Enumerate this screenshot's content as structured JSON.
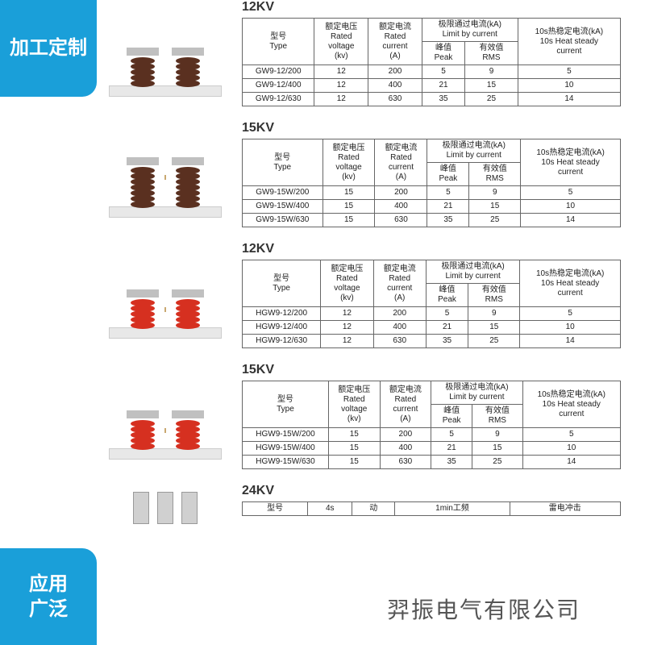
{
  "badges": {
    "top": "加工定制",
    "bottom": "应用\n广泛"
  },
  "footer_company": "羿振电气有限公司",
  "header_labels": {
    "type": "型号\nType",
    "voltage": "额定电压\nRated\nvoltage\n(kv)",
    "current": "额定电流\nRated\ncurrent\n(A)",
    "limit": "极限通过电流(kA)\nLimit by current",
    "peak": "峰值\nPeak",
    "rms": "有效值\nRMS",
    "steady": "10s热稳定电流(kA)\n10s Heat steady\ncurrent"
  },
  "sections": [
    {
      "title": "12KV",
      "insulator_color": "brown",
      "disc_count": 5,
      "cross_bar": false,
      "rows": [
        {
          "type": "GW9-12/200",
          "v": "12",
          "a": "200",
          "peak": "5",
          "rms": "9",
          "steady": "5"
        },
        {
          "type": "GW9-12/400",
          "v": "12",
          "a": "400",
          "peak": "21",
          "rms": "15",
          "steady": "10"
        },
        {
          "type": "GW9-12/630",
          "v": "12",
          "a": "630",
          "peak": "35",
          "rms": "25",
          "steady": "14"
        }
      ]
    },
    {
      "title": "15KV",
      "insulator_color": "brown",
      "disc_count": 7,
      "cross_bar": true,
      "rows": [
        {
          "type": "GW9-15W/200",
          "v": "15",
          "a": "200",
          "peak": "5",
          "rms": "9",
          "steady": "5"
        },
        {
          "type": "GW9-15W/400",
          "v": "15",
          "a": "400",
          "peak": "21",
          "rms": "15",
          "steady": "10"
        },
        {
          "type": "GW9-15W/630",
          "v": "15",
          "a": "630",
          "peak": "35",
          "rms": "25",
          "steady": "14"
        }
      ]
    },
    {
      "title": "12KV",
      "insulator_color": "red",
      "disc_count": 5,
      "cross_bar": true,
      "rows": [
        {
          "type": "HGW9-12/200",
          "v": "12",
          "a": "200",
          "peak": "5",
          "rms": "9",
          "steady": "5"
        },
        {
          "type": "HGW9-12/400",
          "v": "12",
          "a": "400",
          "peak": "21",
          "rms": "15",
          "steady": "10"
        },
        {
          "type": "HGW9-12/630",
          "v": "12",
          "a": "630",
          "peak": "35",
          "rms": "25",
          "steady": "14"
        }
      ]
    },
    {
      "title": "15KV",
      "insulator_color": "red",
      "disc_count": 5,
      "cross_bar": true,
      "rows": [
        {
          "type": "HGW9-15W/200",
          "v": "15",
          "a": "200",
          "peak": "5",
          "rms": "9",
          "steady": "5"
        },
        {
          "type": "HGW9-15W/400",
          "v": "15",
          "a": "400",
          "peak": "21",
          "rms": "15",
          "steady": "10"
        },
        {
          "type": "HGW9-15W/630",
          "v": "15",
          "a": "630",
          "peak": "35",
          "rms": "25",
          "steady": "14"
        }
      ]
    }
  ],
  "partial": {
    "title": "24KV",
    "header_fragments": [
      "型号",
      "4s",
      "动",
      "1min工频",
      "雷电冲击"
    ]
  },
  "styling": {
    "badge_bg": "#1a9fd9",
    "badge_color": "#ffffff",
    "company_color": "#555555",
    "table_border": "#666666",
    "brown": "#5a3020",
    "red": "#d63020",
    "base": "#e8e8e8"
  }
}
